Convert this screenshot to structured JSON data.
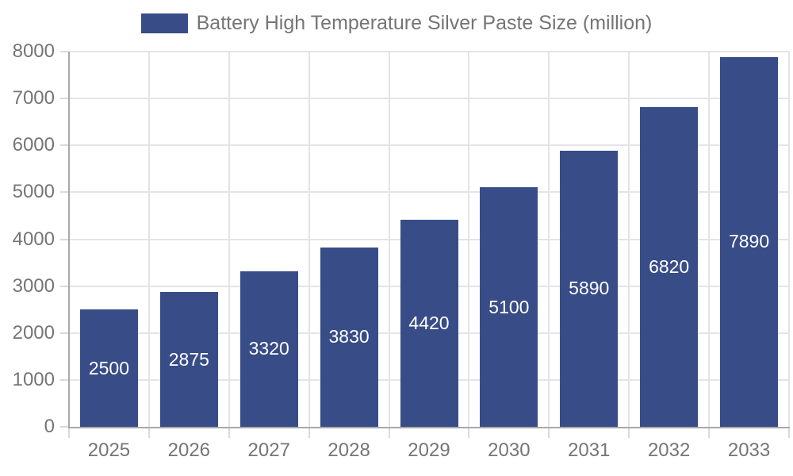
{
  "chart_data": {
    "type": "bar",
    "title": "Battery High Temperature Silver Paste Size (million)",
    "categories": [
      "2025",
      "2026",
      "2027",
      "2028",
      "2029",
      "2030",
      "2031",
      "2032",
      "2033"
    ],
    "values": [
      2500,
      2875,
      3320,
      3830,
      4420,
      5100,
      5890,
      6820,
      7890
    ],
    "y_ticks": [
      "0",
      "1000",
      "2000",
      "3000",
      "4000",
      "5000",
      "6000",
      "7000",
      "8000"
    ],
    "ylim": [
      0,
      8000
    ],
    "xlabel": "",
    "ylabel": "",
    "grid": true,
    "legend_position": "top",
    "value_label_position": "inside-center",
    "colors": {
      "bar": "#384C87",
      "value_label": "#FFFFFF",
      "axis_label": "#757575",
      "legend_text": "#757575",
      "grid_line": "#E4E4E8",
      "axis_line": "#A8A8AD",
      "tick_mark": "#D9D9DE",
      "background": "#FFFFFF"
    }
  }
}
